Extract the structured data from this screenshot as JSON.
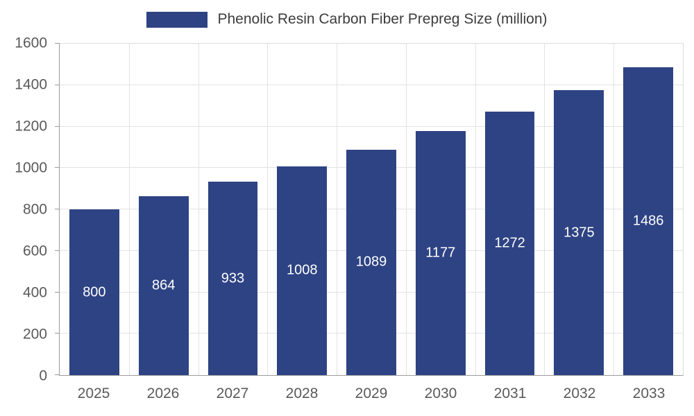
{
  "chart_data": {
    "type": "bar",
    "title": "Phenolic Resin Carbon Fiber Prepreg Size (million)",
    "legend_entries": [
      "Phenolic Resin Carbon Fiber Prepreg Size (million)"
    ],
    "legend_position": "top-center",
    "categories": [
      "2025",
      "2026",
      "2027",
      "2028",
      "2029",
      "2030",
      "2031",
      "2032",
      "2033"
    ],
    "values": [
      800,
      864,
      933,
      1008,
      1089,
      1177,
      1272,
      1375,
      1486
    ],
    "xlabel": "",
    "ylabel": "",
    "ylim": [
      0,
      1600
    ],
    "ytick_step": 200,
    "yticks": [
      0,
      200,
      400,
      600,
      800,
      1000,
      1200,
      1400,
      1600
    ],
    "grid": true,
    "bar_color": "#2E4383",
    "value_label_color": "#ffffff",
    "axis_label_color": "#595959",
    "grid_color": "#e2e2e2",
    "title_color": "#3c3c3c"
  }
}
